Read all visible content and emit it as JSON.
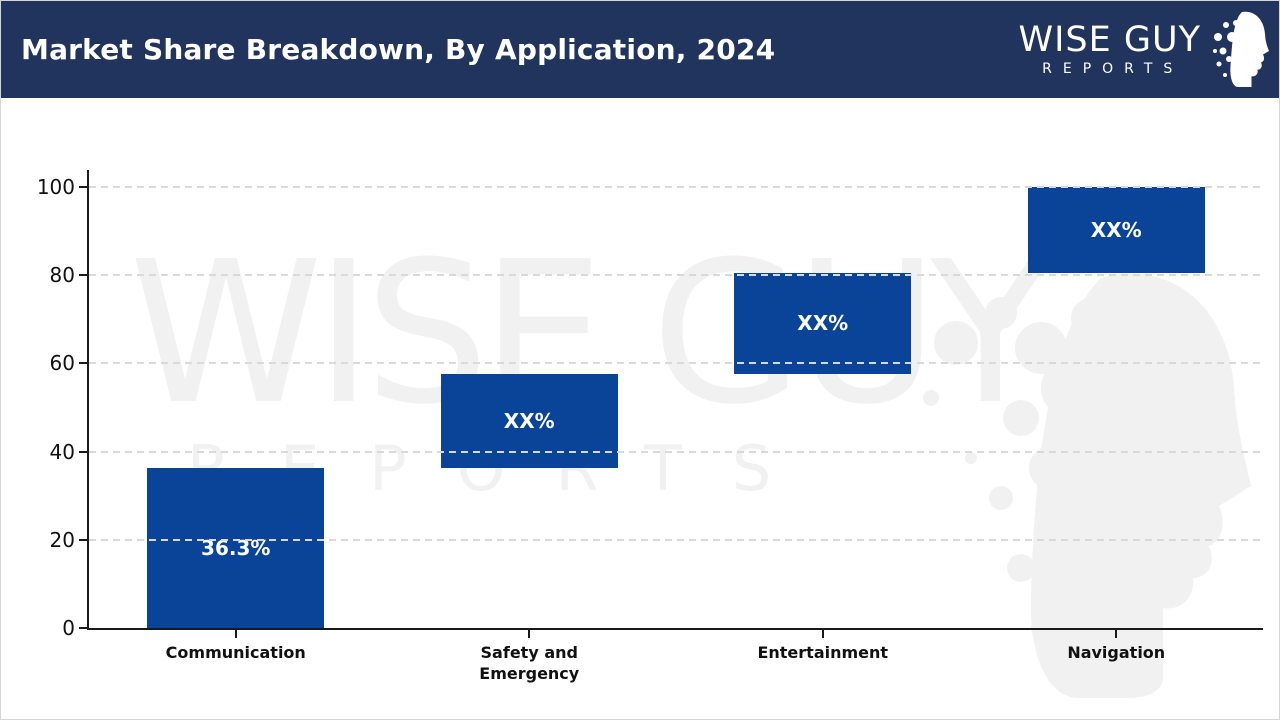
{
  "header": {
    "title": "Market Share Breakdown, By Application, 2024",
    "logo": {
      "line1": "WISE GUY",
      "line2": "REPORTS"
    }
  },
  "watermark": {
    "line1": "WISE GUY",
    "line2": "REPORTS"
  },
  "colors": {
    "header_bg": "#21345e",
    "bar": "#0a4499",
    "grid": "#d9d9d9",
    "axis": "#1a1a1a",
    "bar_label": "#ffffff",
    "watermark": "#f1f1f2"
  },
  "chart_data": {
    "type": "bar",
    "subtype": "waterfall",
    "title": "Market Share Breakdown, By Application, 2024",
    "xlabel": "",
    "ylabel": "",
    "ylim": [
      0,
      100
    ],
    "yticks": [
      0,
      20,
      40,
      60,
      80,
      100
    ],
    "grid": "horizontal-dashed",
    "legend": "none",
    "categories": [
      "Communication",
      "Safety and Emergency",
      "Entertainment",
      "Navigation"
    ],
    "bars": [
      {
        "category": "Communication",
        "category_lines": [
          "Communication"
        ],
        "start": 0,
        "end": 36.3,
        "value": 36.3,
        "label": "36.3%"
      },
      {
        "category": "Safety and Emergency",
        "category_lines": [
          "Safety and",
          "Emergency"
        ],
        "start": 36.3,
        "end": 57.6,
        "value": 21.3,
        "label": "XX%"
      },
      {
        "category": "Entertainment",
        "category_lines": [
          "Entertainment"
        ],
        "start": 57.6,
        "end": 80.5,
        "value": 22.9,
        "label": "XX%"
      },
      {
        "category": "Navigation",
        "category_lines": [
          "Navigation"
        ],
        "start": 80.5,
        "end": 100,
        "value": 19.5,
        "label": "XX%"
      }
    ]
  }
}
